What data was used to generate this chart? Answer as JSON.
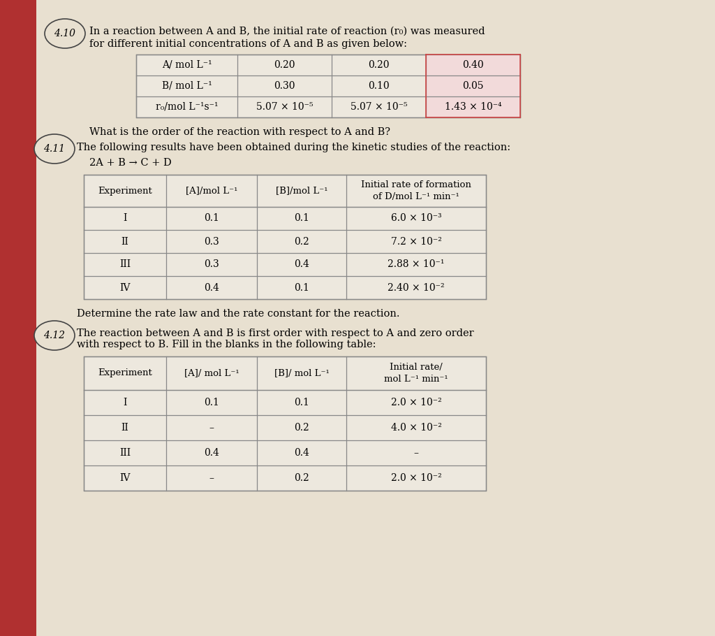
{
  "bg_color": "#c8b89a",
  "page_color": "#e8e0d0",
  "red_margin": "#b03030",
  "section_410": {
    "number": "4.10",
    "intro1": "In a reaction between A and B, the initial rate of reaction (r₀) was measured",
    "intro2": "for different initial concentrations of A and B as given below:",
    "table_rows": [
      [
        "A/ mol L⁻¹",
        "0.20",
        "0.20",
        "0.40"
      ],
      [
        "B/ mol L⁻¹",
        "0.30",
        "0.10",
        "0.05"
      ],
      [
        "r₀/mol L⁻¹s⁻¹",
        "5.07 × 10⁻⁵",
        "5.07 × 10⁻⁵",
        "1.43 × 10⁻⁴"
      ]
    ],
    "question": "What is the order of the reaction with respect to A and B?"
  },
  "section_411": {
    "number": "4.11",
    "intro1": "The following results have been obtained during the kinetic studies of the reaction:",
    "equation": "2A + B → C + D",
    "table_headers": [
      "Experiment",
      "[A]/mol L⁻¹",
      "[B]/mol L⁻¹",
      "Initial rate of formation\nof D/mol L⁻¹ min⁻¹"
    ],
    "table_rows": [
      [
        "I",
        "0.1",
        "0.1",
        "6.0 × 10⁻³"
      ],
      [
        "II",
        "0.3",
        "0.2",
        "7.2 × 10⁻²"
      ],
      [
        "III",
        "0.3",
        "0.4",
        "2.88 × 10⁻¹"
      ],
      [
        "IV",
        "0.4",
        "0.1",
        "2.40 × 10⁻²"
      ]
    ],
    "question": "Determine the rate law and the rate constant for the reaction."
  },
  "section_412": {
    "number": "4.12",
    "intro1": "The reaction between A and B is first order with respect to A and zero order",
    "intro2": "with respect to B. Fill in the blanks in the following table:",
    "table_headers": [
      "Experiment",
      "[A]/ mol L⁻¹",
      "[B]/ mol L⁻¹",
      "Initial rate/\nmol L⁻¹ min⁻¹"
    ],
    "table_rows": [
      [
        "I",
        "0.1",
        "0.1",
        "2.0 × 10⁻²"
      ],
      [
        "II",
        "–",
        "0.2",
        "4.0 × 10⁻²"
      ],
      [
        "III",
        "0.4",
        "0.4",
        "–"
      ],
      [
        "IV",
        "–",
        "0.2",
        "2.0 × 10⁻²"
      ]
    ]
  }
}
